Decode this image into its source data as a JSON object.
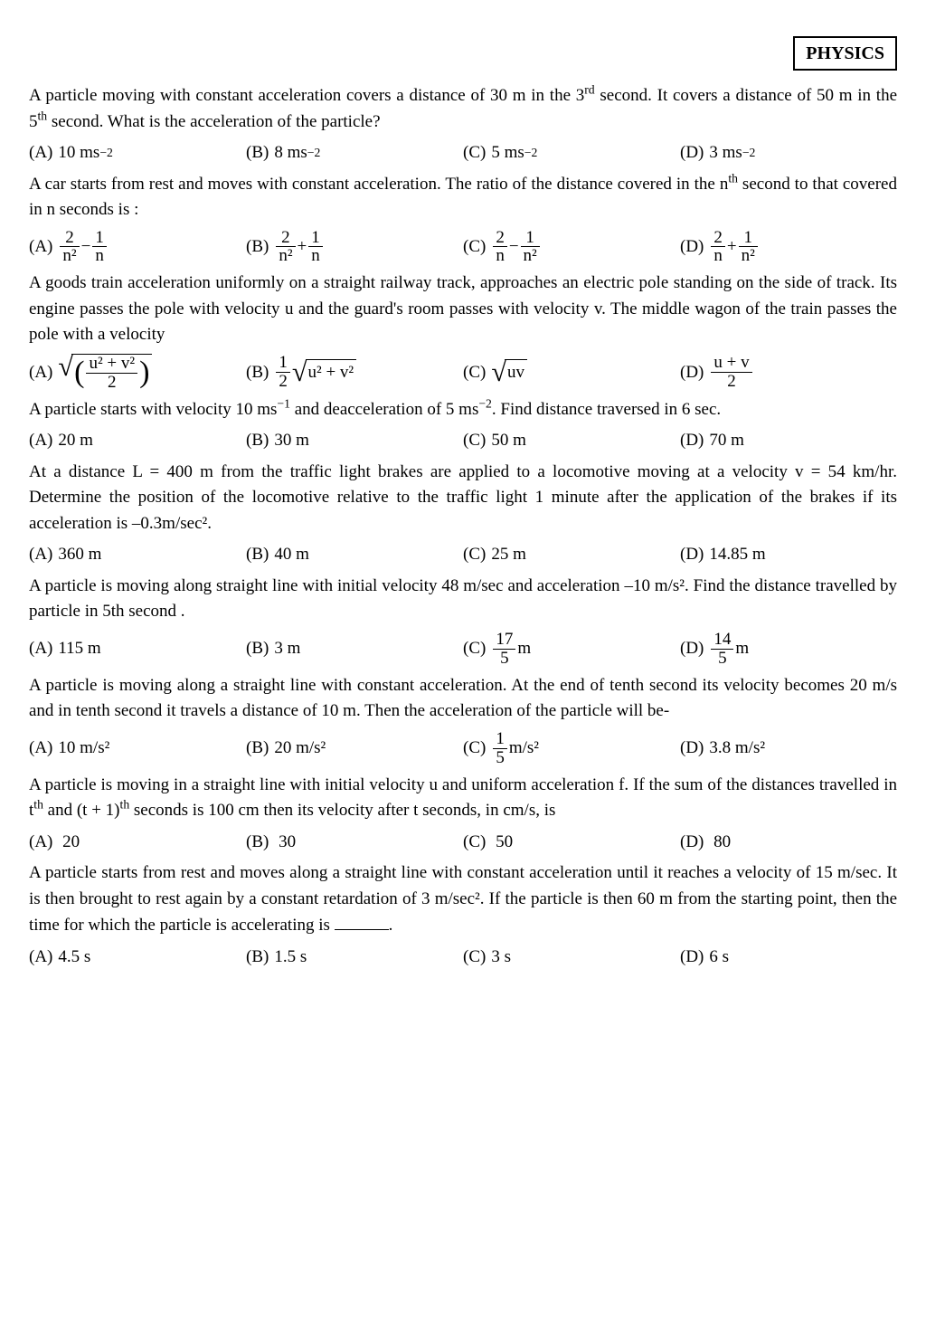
{
  "header": {
    "badge": "PHYSICS"
  },
  "q1": {
    "text_a": "A particle moving with constant acceleration covers a distance of 30 m in the 3",
    "sup1": "rd",
    "text_b": " second. It covers a distance of 50 m in the 5",
    "sup2": "th",
    "text_c": " second. What is the acceleration of the particle?",
    "A": "10 ms",
    "A_sup": "−2",
    "B": "8 ms",
    "B_sup": "−2",
    "C": "5 ms",
    "C_sup": "−2",
    "D": "3 ms",
    "D_sup": "−2"
  },
  "q2": {
    "text_a": "A car starts from rest and moves with constant acceleration. The ratio of the distance covered in the n",
    "sup1": "th",
    "text_b": " second to that covered in n seconds is :",
    "A_num1": "2",
    "A_den1": "n²",
    "A_op": " − ",
    "A_num2": "1",
    "A_den2": "n",
    "B_num1": "2",
    "B_den1": "n²",
    "B_op": " + ",
    "B_num2": "1",
    "B_den2": "n",
    "C_num1": "2",
    "C_den1": "n",
    "C_op": " − ",
    "C_num2": "1",
    "C_den2": "n²",
    "D_num1": "2",
    "D_den1": "n",
    "D_op": " + ",
    "D_num2": "1",
    "D_den2": "n²"
  },
  "q3": {
    "text": "A goods train acceleration uniformly on a straight railway track, approaches an electric pole standing on the side of track. Its engine passes the pole with velocity u and the guard's room passes with velocity v. The middle wagon of the train passes the pole with a velocity",
    "A_inner_num": "u² + v²",
    "A_inner_den": "2",
    "B_coef_num": "1",
    "B_coef_den": "2",
    "B_rad": "u² + v²",
    "C_rad": "uv",
    "D_num": "u + v",
    "D_den": "2"
  },
  "q4": {
    "text_a": "A particle starts with velocity 10 ms",
    "sup1": "−1",
    "text_b": " and deacceleration of 5 ms",
    "sup2": "−2",
    "text_c": ". Find  distance traversed in 6 sec.",
    "A": "20 m",
    "B": "30 m",
    "C": "50 m",
    "D": "70 m"
  },
  "q5": {
    "text": "At a distance L = 400 m from the traffic light brakes are applied to a locomotive moving at a velocity v = 54 km/hr. Determine the position of the locomotive relative to the traffic light 1 minute after the application of the brakes if its acceleration is –0.3m/sec².",
    "A": "360 m",
    "B": "40 m",
    "C": "25 m",
    "D": "14.85 m"
  },
  "q6": {
    "text": "A particle is moving along straight line with initial velocity 48 m/sec and acceleration –10 m/s². Find the distance travelled by particle in 5th second .",
    "A": "115 m",
    "B": "3 m",
    "C_num": "17",
    "C_den": "5",
    "C_unit": " m",
    "D_num": "14",
    "D_den": "5",
    "D_unit": " m"
  },
  "q7": {
    "text": "A particle is moving along a straight line with constant acceleration. At the end of tenth second its velocity becomes 20 m/s and in tenth second it travels a distance of 10 m. Then the acceleration of the particle will be-",
    "A": "10 m/s²",
    "B": "20 m/s²",
    "C_num": "1",
    "C_den": "5",
    "C_unit": "m/s²",
    "D": "3.8 m/s²"
  },
  "q8": {
    "text_a": "A particle is moving in a straight line with initial velocity u and uniform acceleration f. If the sum of  the distances  travelled  in t",
    "sup1": "th",
    "text_b": " and (t + 1)",
    "sup2": "th",
    "text_c": " seconds is 100 cm then its velocity after t seconds, in cm/s, is",
    "A": "20",
    "B": "30",
    "C": "50",
    "D": "80"
  },
  "q9": {
    "text_a": "A particle starts from rest and moves along a straight line with constant acceleration until it reaches a velocity of 15 m/sec. It is then brought to rest again by a constant retardation of 3 m/sec². If the particle is then 60 m from the starting point, then the time for which the particle is accelerating is ",
    "text_b": ".",
    "A": "4.5 s",
    "B": "1.5 s",
    "C": "3 s",
    "D": "6 s"
  },
  "labels": {
    "A": "(A)",
    "B": "(B)",
    "C": "(C)",
    "D": "(D)"
  }
}
